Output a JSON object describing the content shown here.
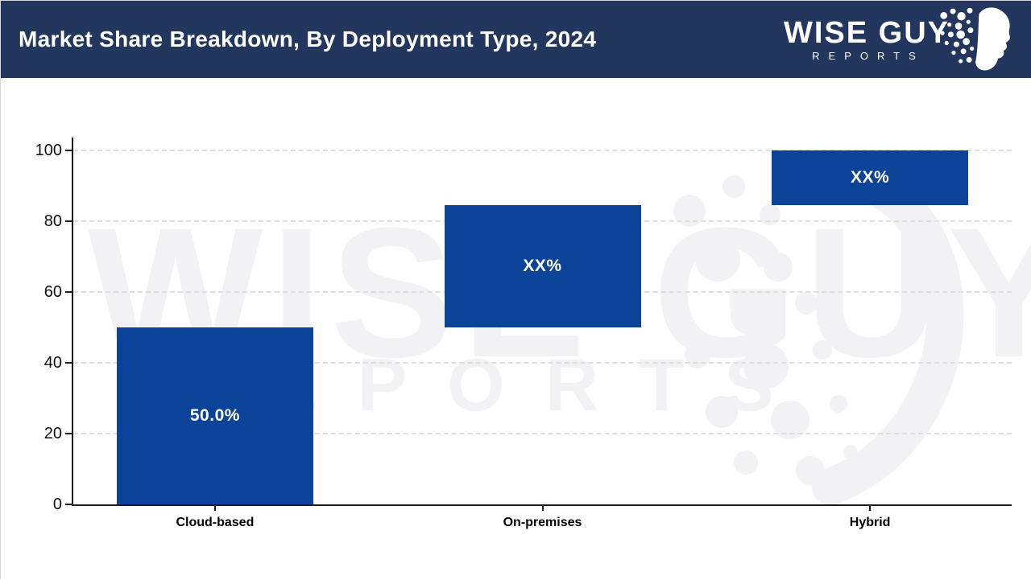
{
  "header": {
    "title": "Market Share Breakdown, By Deployment Type, 2024",
    "bg_color": "#22365e",
    "logo": {
      "line1": "WISE GUY",
      "line2": "REPORTS"
    }
  },
  "watermark": {
    "line1": "WISE GUY",
    "line2": "REPORTS"
  },
  "chart_data": {
    "type": "bar",
    "subtype": "floating-stacked-percentage",
    "title": "Market Share Breakdown, By Deployment Type, 2024",
    "categories": [
      "Cloud-based",
      "On-premises",
      "Hybrid"
    ],
    "series": [
      {
        "name": "Market share (%)",
        "segments": [
          {
            "category": "Cloud-based",
            "from": 0,
            "to": 50,
            "label": "50.0%"
          },
          {
            "category": "On-premises",
            "from": 50,
            "to": 84.5,
            "label": "XX%"
          },
          {
            "category": "Hybrid",
            "from": 84.5,
            "to": 100,
            "label": "XX%"
          }
        ]
      }
    ],
    "xlabel": "",
    "ylabel": "",
    "ylim": [
      0,
      103.6
    ],
    "yticks": [
      0,
      20,
      40,
      60,
      80,
      100
    ],
    "grid": "dashed-horizontal",
    "legend": "none",
    "bar_color": "#0a4397",
    "grid_color": "#dedede",
    "axis_color": "#1a1a1a",
    "label_color_inside_bar": "#ffffff"
  }
}
